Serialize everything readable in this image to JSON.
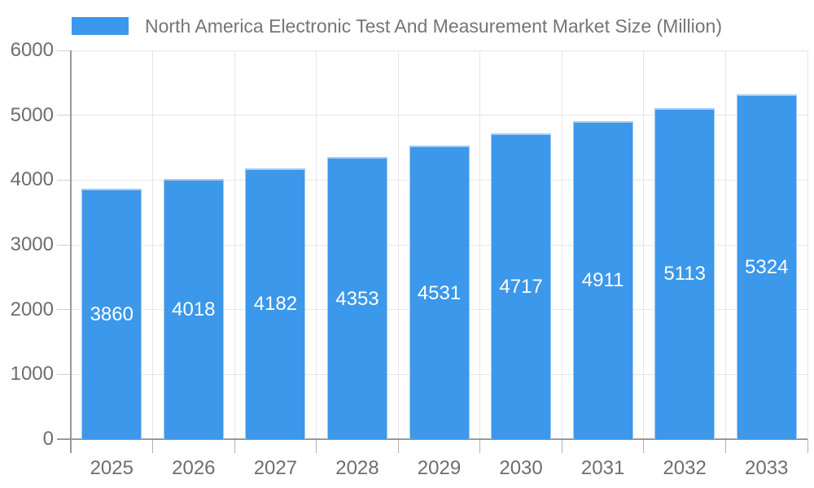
{
  "legend": {
    "label": "North America Electronic Test And Measurement Market Size (Million)"
  },
  "chart_data": {
    "type": "bar",
    "title": "North America Electronic Test And Measurement Market Size (Million)",
    "categories": [
      "2025",
      "2026",
      "2027",
      "2028",
      "2029",
      "2030",
      "2031",
      "2032",
      "2033"
    ],
    "values": [
      3860,
      4018,
      4182,
      4353,
      4531,
      4717,
      4911,
      5113,
      5324
    ],
    "xlabel": "",
    "ylabel": "",
    "ylim": [
      0,
      6000
    ],
    "yticks": [
      0,
      1000,
      2000,
      3000,
      4000,
      5000,
      6000
    ],
    "grid": true,
    "legend_position": "top-left",
    "colors": {
      "bar_fill": "#3B98EB",
      "bar_border": "#A6CBF1",
      "value_label": "#FFFFFF",
      "grid_line": "#E6E6E6",
      "axis_line": "#999999",
      "y_tick": "#CFCFCF",
      "x_tick": "#B3B3B3",
      "axis_text": "#6E6E6E",
      "legend_text": "#757575"
    }
  }
}
